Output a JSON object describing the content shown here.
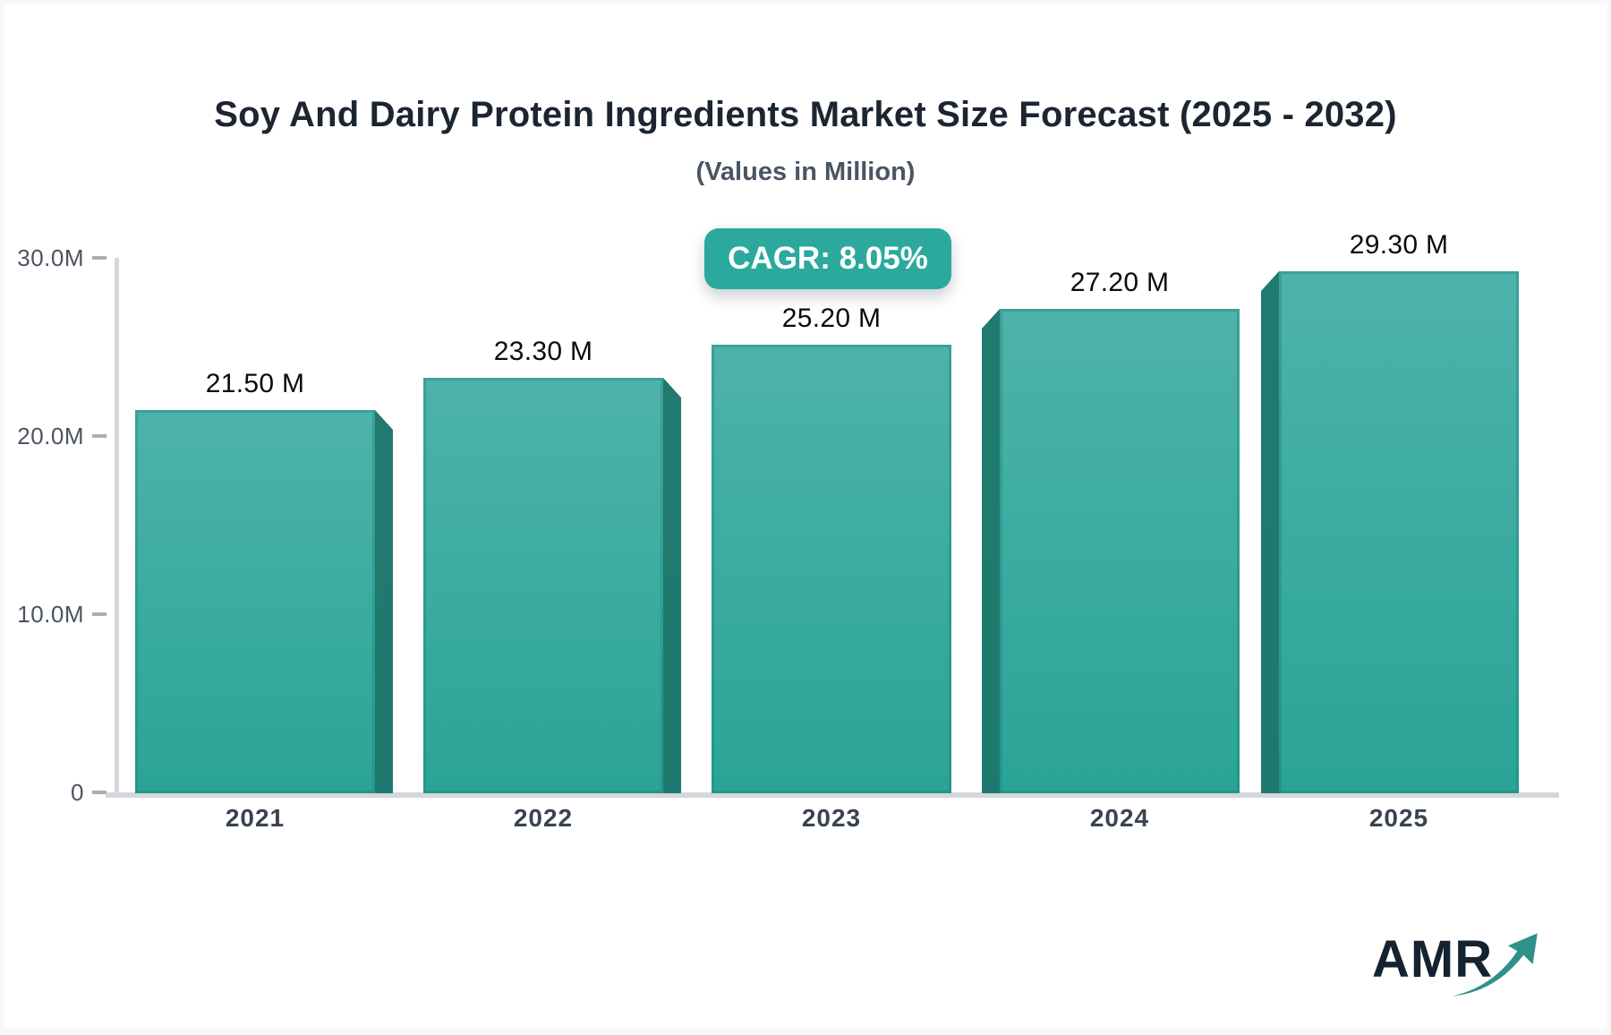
{
  "page": {
    "background": "#f7f8f9",
    "card_background": "#ffffff"
  },
  "header": {
    "title": "Soy And Dairy Protein Ingredients Market Size Forecast (2025 - 2032)",
    "subtitle": "(Values in Million)"
  },
  "cagr_badge": {
    "label": "CAGR: 8.05%",
    "background": "#2ba99c",
    "text_color": "#ffffff"
  },
  "chart_data": {
    "type": "bar",
    "title": "Soy And Dairy Protein Ingredients Market Size Forecast (2025 - 2032)",
    "subtitle": "(Values in Million)",
    "unit": "Million",
    "categories": [
      "2021",
      "2022",
      "2023",
      "2024",
      "2025"
    ],
    "values": [
      21.5,
      23.3,
      25.2,
      27.2,
      29.3
    ],
    "value_labels": [
      "21.50 M",
      "23.30 M",
      "25.20 M",
      "27.20 M",
      "29.30 M"
    ],
    "cagr": "8.05%",
    "ylim": [
      0,
      30
    ],
    "yticks": [
      {
        "value": 30,
        "label": "30.0M"
      },
      {
        "value": 20,
        "label": "20.0M"
      },
      {
        "value": 10,
        "label": "10.0M"
      },
      {
        "value": 0,
        "label": "0"
      }
    ],
    "grid": false,
    "legend": false,
    "bar_color_top": "#4db3aa",
    "bar_color_bottom": "#2aa497",
    "bar_side_color": "#20796f",
    "axis_color": "#d4d7dc"
  },
  "logo": {
    "text": "AMR",
    "arrow_icon": "trend-up-arrow",
    "text_color": "#15222f",
    "arrow_color": "#2f9189"
  }
}
